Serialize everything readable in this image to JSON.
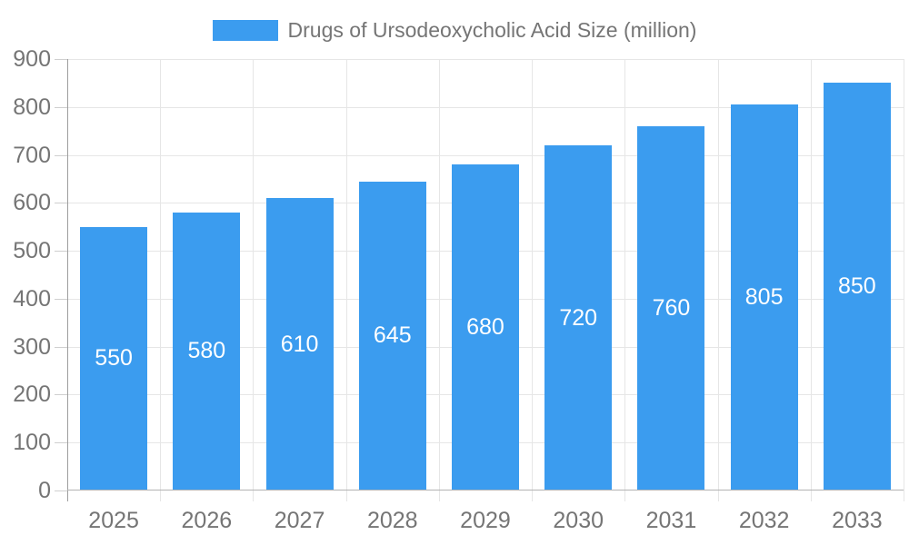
{
  "chart_data": {
    "type": "bar",
    "title": "Drugs of Ursodeoxycholic Acid Size (million)",
    "categories": [
      "2025",
      "2026",
      "2027",
      "2028",
      "2029",
      "2030",
      "2031",
      "2032",
      "2033"
    ],
    "values": [
      550,
      580,
      610,
      645,
      680,
      720,
      760,
      805,
      850
    ],
    "xlabel": "",
    "ylabel": "",
    "ylim": [
      0,
      900
    ],
    "ytick_step": 100,
    "grid": true,
    "legend_position": "top",
    "bar_value_labels": "inside-center",
    "colors": {
      "bar": "#3B9CEF",
      "bar_label_text": "#FFFFFF",
      "axis_text": "#757575",
      "legend_text": "#757575",
      "y_axis_line": "#9E9E9E",
      "x_axis_line": "#B3B3B3",
      "gridline": "#E6E6E6",
      "tick": "#CFCFCF",
      "background": "#FFFFFF"
    }
  }
}
